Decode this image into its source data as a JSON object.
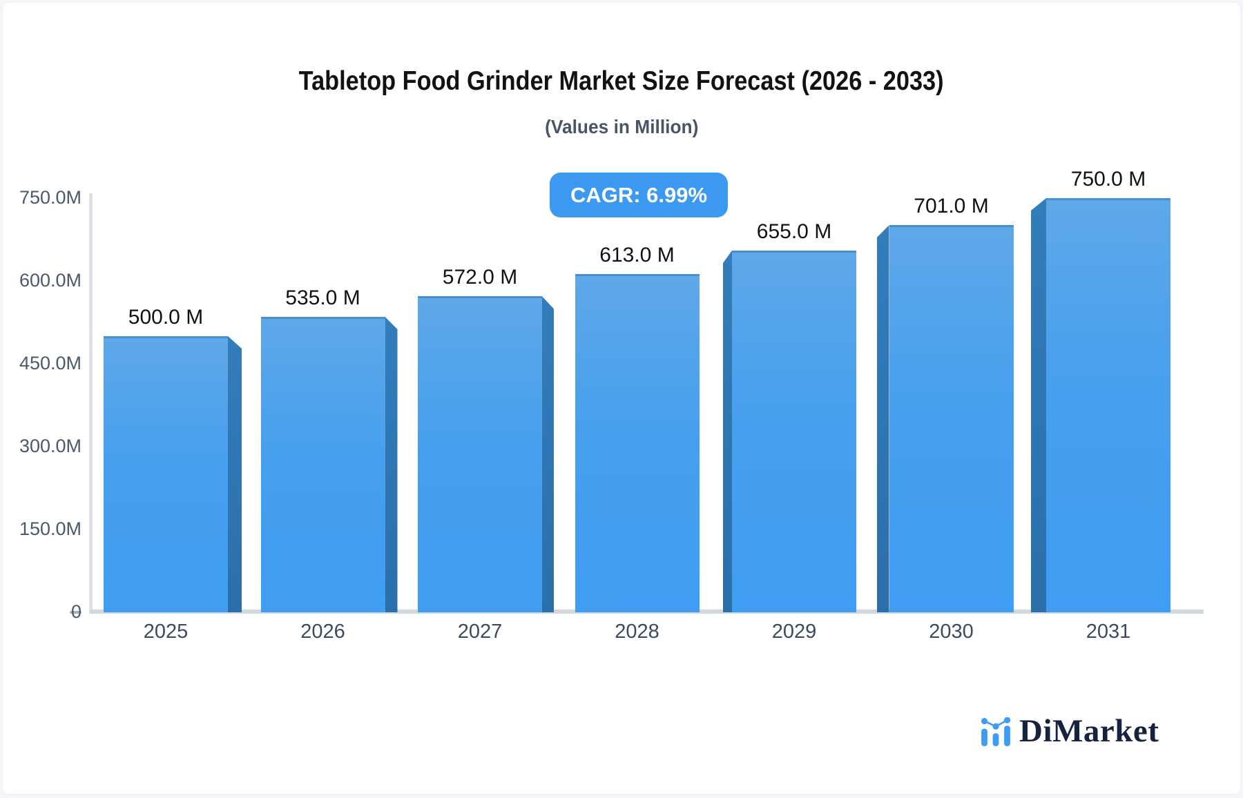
{
  "page": {
    "background": "#f3f5f8",
    "card_background": "#ffffff"
  },
  "header": {
    "title": "Tabletop Food Grinder Market Size Forecast (2026 - 2033)",
    "subtitle": "(Values in Million)"
  },
  "badge": {
    "label": "CAGR: 6.99%",
    "background": "#3b99f0",
    "text_color": "#ffffff"
  },
  "chart_data": {
    "type": "bar",
    "title": "Tabletop Food Grinder Market Size Forecast (2026 - 2033)",
    "subtitle": "(Values in Million)",
    "unit": "Million",
    "categories": [
      "2025",
      "2026",
      "2027",
      "2028",
      "2029",
      "2030",
      "2031"
    ],
    "values": [
      500.0,
      535.0,
      572.0,
      613.0,
      655.0,
      701.0,
      750.0
    ],
    "bar_labels": [
      "500.0 M",
      "535.0 M",
      "572.0 M",
      "613.0 M",
      "655.0 M",
      "701.0 M",
      "750.0 M"
    ],
    "cagr": "6.99%",
    "ylim": [
      0,
      750
    ],
    "ytick_values": [
      0,
      150,
      300,
      450,
      600,
      750
    ],
    "ytick_labels": [
      "0",
      "150.0M",
      "300.0M",
      "450.0M",
      "600.0M",
      "750.0M"
    ],
    "grid": false,
    "legend": "none",
    "bar_color_top": "#5ea8e8",
    "bar_color_bottom": "#3f9ef3",
    "bar_side_color": "#2e75b2",
    "axis_color": "#d2d6dd"
  },
  "footer": {
    "logo_text": "DiMarket",
    "logo_color": "#16233c",
    "logo_icon": "bar-line-chart-icon",
    "logo_icon_color": "#3f9cf5"
  }
}
